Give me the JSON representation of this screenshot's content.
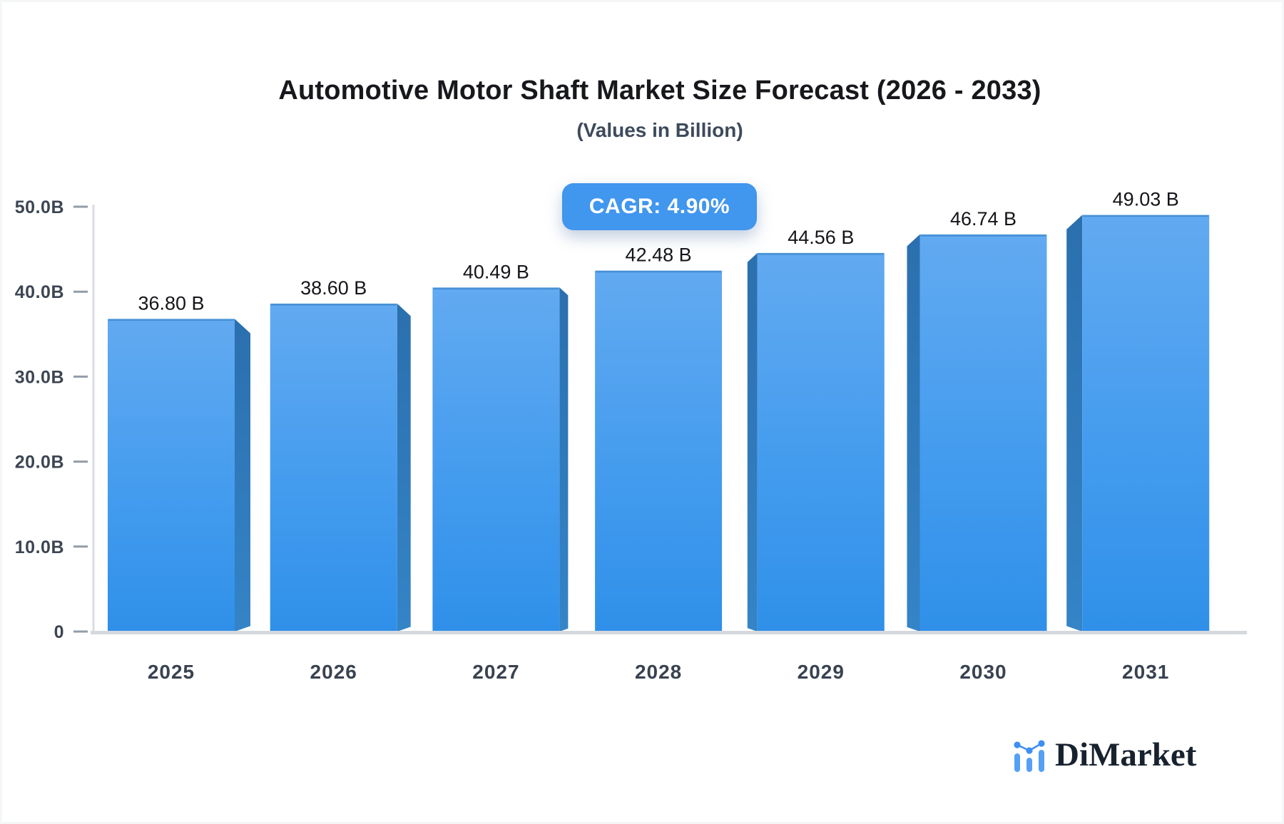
{
  "header": {
    "title": "Automotive Motor Shaft Market Size Forecast (2026 - 2033)",
    "subtitle": "(Values in Billion)"
  },
  "cagr_badge": {
    "label": "CAGR: 4.90%"
  },
  "chart_data": {
    "type": "bar",
    "title": "Automotive Motor Shaft Market Size Forecast (2026 - 2033)",
    "subtitle": "(Values in Billion)",
    "annotation": "CAGR: 4.90%",
    "categories": [
      "2025",
      "2026",
      "2027",
      "2028",
      "2029",
      "2030",
      "2031"
    ],
    "values": [
      36.8,
      38.6,
      40.49,
      42.48,
      44.56,
      46.74,
      49.03
    ],
    "value_labels": [
      "36.80 B",
      "38.60 B",
      "40.49 B",
      "42.48 B",
      "44.56 B",
      "46.74 B",
      "49.03 B"
    ],
    "xlabel": "",
    "ylabel": "",
    "ylim": [
      0,
      50
    ],
    "y_ticks": {
      "values": [
        0,
        10,
        20,
        30,
        40,
        50
      ],
      "labels": [
        "0",
        "10.0B",
        "20.0B",
        "30.0B",
        "40.0B",
        "50.0B"
      ]
    },
    "grid": false,
    "legend": false,
    "style": "3d-perspective-bars"
  },
  "logo": {
    "text": "DiMarket",
    "icon": "mini-bar-line-chart"
  },
  "colors": {
    "badge_bg": "#4196ee",
    "badge_text": "#ffffff",
    "bar_face_top": "#62aaf1",
    "bar_face_mid": "#449cee",
    "bar_face_bottom": "#2f90e9",
    "bar_side_top": "#2b6fae",
    "bar_side_bottom": "#3484c7",
    "bar_top_edge": "#3c86c9",
    "axis_line": "#d9dce1",
    "baseline": "#d5d9de",
    "tick": "#939ca8",
    "y_label": "#3c4552",
    "x_label": "#39424f",
    "value_label": "#141519",
    "title": "#17181c",
    "subtitle": "#3d4a5c",
    "logo_text": "#18222f",
    "logo_blue": "#55a0f6",
    "logo_dot_blue": "#3e8ef4"
  }
}
